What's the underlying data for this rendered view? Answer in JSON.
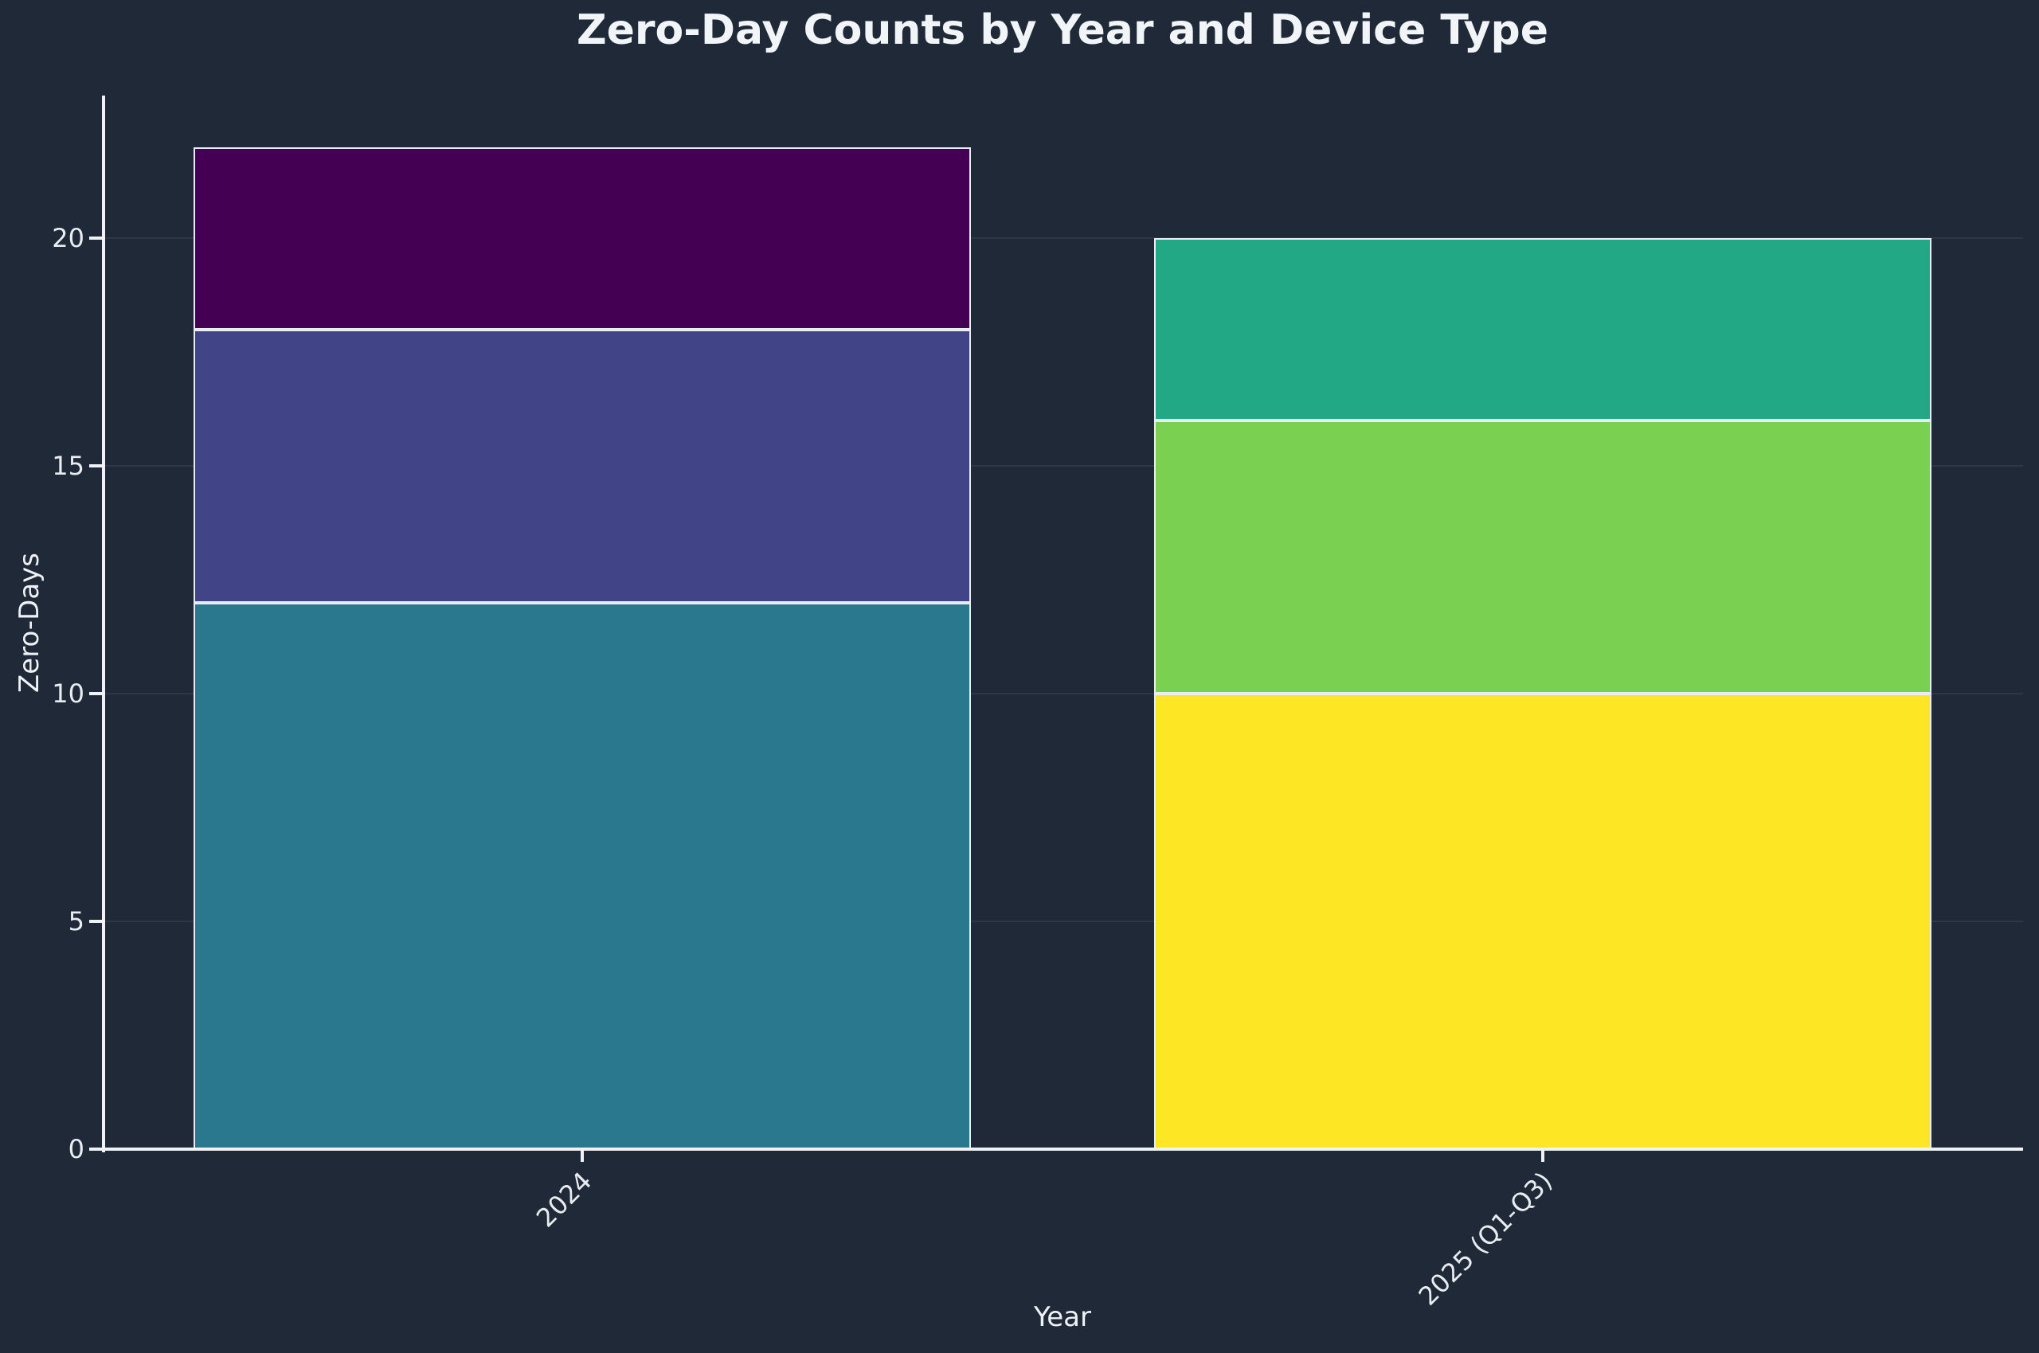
{
  "page": {
    "background": "#1f2937"
  },
  "chart_data": {
    "type": "bar",
    "stacked": true,
    "title": "Zero-Day Counts by Year and Device Type",
    "xlabel": "Year",
    "ylabel": "Zero-Days",
    "categories": [
      "2024",
      "2025 (Q1-Q3)"
    ],
    "yticks": [
      0,
      5,
      10,
      15,
      20
    ],
    "ylim": [
      0,
      23.1
    ],
    "grid": {
      "horizontal": true,
      "style": "faint"
    },
    "legend": "none",
    "stack_order": "bottom-to-top",
    "bars": [
      {
        "category": "2024",
        "total": 22,
        "segments": [
          {
            "color": "#2a788e",
            "value": 12
          },
          {
            "color": "#414487",
            "value": 6
          },
          {
            "color": "#440154",
            "value": 4
          }
        ]
      },
      {
        "category": "2025 (Q1-Q3)",
        "total": 20,
        "segments": [
          {
            "color": "#fde725",
            "value": 10
          },
          {
            "color": "#7ad151",
            "value": 6
          },
          {
            "color": "#22a884",
            "value": 4
          }
        ]
      }
    ],
    "colors": {
      "background": "#1f2937",
      "axis": "#f0f2f5",
      "text": "#eef1f5",
      "bar_edge": "#e9ecf2",
      "gridline": "rgba(173,190,214,0.10)"
    }
  }
}
